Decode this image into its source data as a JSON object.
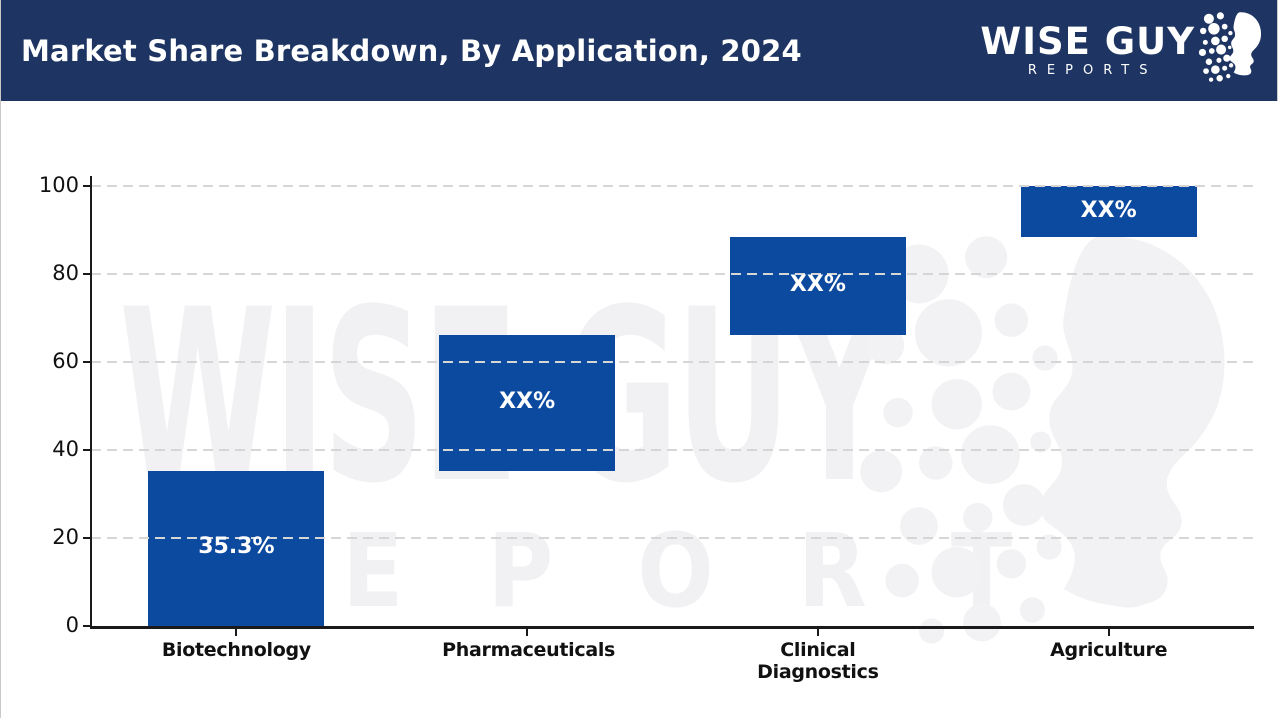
{
  "header": {
    "title": "Market Share Breakdown, By Application, 2024",
    "logo": {
      "wordmark": "WISE GUY",
      "subtext": "REPORTS"
    }
  },
  "watermark": {
    "line1": "WISE GUY",
    "line2": "R E P O R T S"
  },
  "colors": {
    "header_bg": "#1e3563",
    "bar": "#0b4a9e",
    "grid": "#d6d6d6",
    "axis": "#1a1a1a",
    "watermark": "#f1f1f3",
    "bar_label": "#ffffff"
  },
  "chart_data": {
    "type": "bar",
    "subtype": "waterfall",
    "title": "Market Share Breakdown, By Application, 2024",
    "categories": [
      "Biotechnology",
      "Pharmaceuticals",
      "Clinical Diagnostics",
      "Agriculture"
    ],
    "segments": [
      {
        "category": "Biotechnology",
        "start": 0,
        "end": 35.3,
        "label": "35.3%"
      },
      {
        "category": "Pharmaceuticals",
        "start": 35.3,
        "end": 66.1,
        "label": "XX%"
      },
      {
        "category": "Clinical Diagnostics",
        "start": 66.1,
        "end": 88.3,
        "label": "XX%"
      },
      {
        "category": "Agriculture",
        "start": 88.3,
        "end": 100,
        "label": "XX%"
      }
    ],
    "xlabel": "",
    "ylabel": "",
    "ylim": [
      0,
      100
    ],
    "yticks": [
      0,
      20,
      40,
      60,
      80,
      100
    ],
    "grid": "horizontal-dashed",
    "legend": "none",
    "bar_color": "#0b4a9e",
    "value_label_color": "#ffffff"
  }
}
